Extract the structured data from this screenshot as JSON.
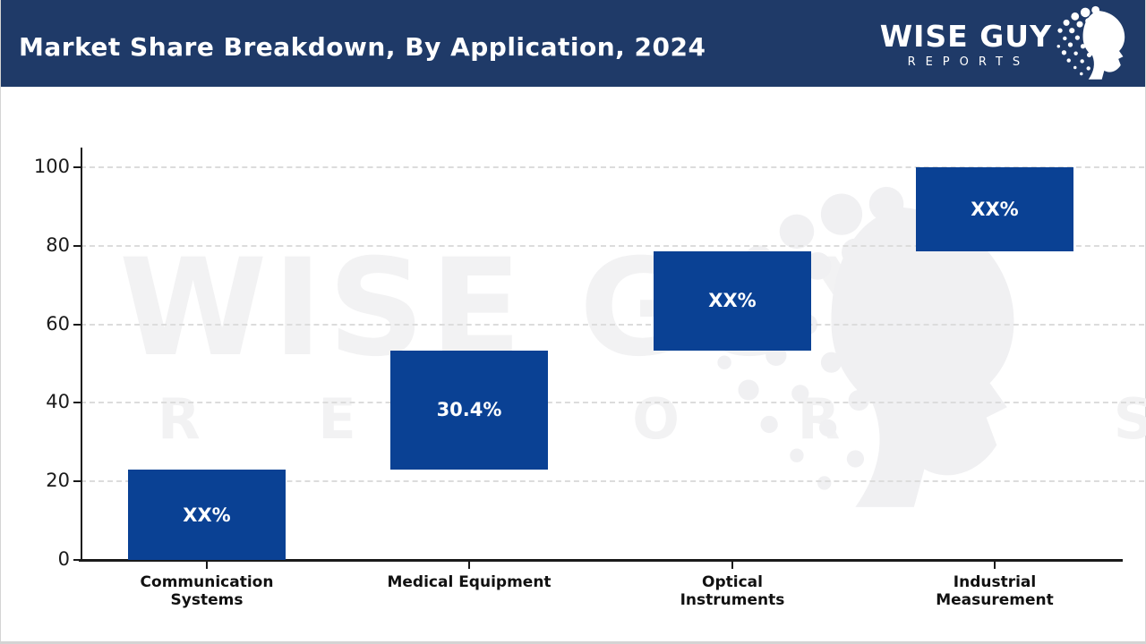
{
  "header": {
    "title": "Market Share Breakdown, By Application, 2024",
    "logo": {
      "line1": "WISE GUY",
      "line2": "REPORTS"
    }
  },
  "colors": {
    "header_bg": "#1f3a68",
    "bar": "#0a4194",
    "grid": "#dcdcdc",
    "axis": "#1a1a1a",
    "watermark": "#f2f2f3",
    "bar_label": "#ffffff",
    "title_text": "#ffffff"
  },
  "chart_data": {
    "type": "bar",
    "variant": "waterfall-floating-segments",
    "title": "Market Share Breakdown, By Application, 2024",
    "categories": [
      "Communication Systems",
      "Medical Equipment",
      "Optical Instruments",
      "Industrial Measurement"
    ],
    "bars": [
      {
        "category": "Communication Systems",
        "axis_label": "Communication\nSystems",
        "start": 0,
        "end": 23,
        "size_pct": 23,
        "label": "XX%"
      },
      {
        "category": "Medical Equipment",
        "axis_label": "Medical Equipment",
        "start": 23,
        "end": 53.4,
        "size_pct": 30.4,
        "label": "30.4%"
      },
      {
        "category": "Optical Instruments",
        "axis_label": "Optical\nInstruments",
        "start": 53.4,
        "end": 78.6,
        "size_pct": 25.2,
        "label": "XX%"
      },
      {
        "category": "Industrial Measurement",
        "axis_label": "Industrial\nMeasurement",
        "start": 78.6,
        "end": 100,
        "size_pct": 21.4,
        "label": "XX%"
      }
    ],
    "y_ticks": [
      0,
      20,
      40,
      60,
      80,
      100
    ],
    "ylim": [
      0,
      105
    ],
    "xlabel": "",
    "ylabel": "",
    "grid": "horizontal-dashed",
    "legend": "none",
    "watermark": {
      "line1": "WISE GUY",
      "line2": "R E P O R T S"
    }
  }
}
